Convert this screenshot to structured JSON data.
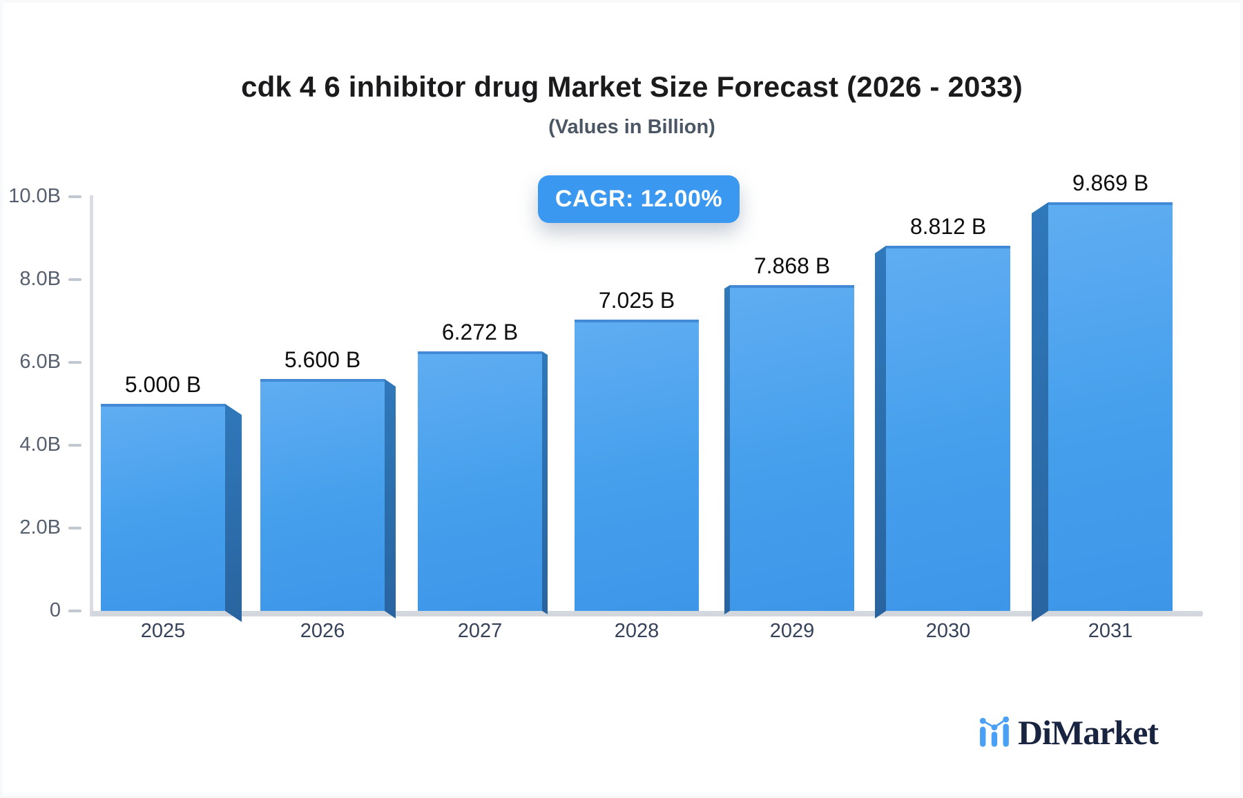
{
  "header": {
    "title": "cdk 4 6 inhibitor drug Market Size Forecast (2026 - 2033)",
    "subtitle": "(Values in Billion)"
  },
  "badge": {
    "label": "CAGR: 12.00%",
    "bg_color": "#3b98f0",
    "text_color": "#ffffff"
  },
  "chart_data": {
    "type": "bar",
    "title": "cdk 4 6 inhibitor drug Market Size Forecast (2026 - 2033)",
    "subtitle": "(Values in Billion)",
    "annotation": "CAGR: 12.00%",
    "categories": [
      "2025",
      "2026",
      "2027",
      "2028",
      "2029",
      "2030",
      "2031"
    ],
    "values": [
      5.0,
      5.6,
      6.272,
      7.025,
      7.868,
      8.812,
      9.869
    ],
    "data_labels": [
      "5.000 B",
      "5.600 B",
      "6.272 B",
      "7.025 B",
      "7.868 B",
      "8.812 B",
      "9.869 B"
    ],
    "xlabel": "",
    "ylabel": "",
    "ylim": [
      0,
      10
    ],
    "yticks": {
      "values": [
        0,
        2,
        4,
        6,
        8,
        10
      ],
      "labels": [
        "0",
        "2.0B",
        "4.0B",
        "6.0B",
        "8.0B",
        "10.0B"
      ]
    },
    "grid": false,
    "legend_position": "none",
    "colors": {
      "bar_face": "#459fec",
      "bar_face_light": "#5fadf2",
      "bar_face_deep": "#3e96e9",
      "bar_side_3d": "#2d72b4",
      "bar_top_edge": "#4289d6",
      "axis_line": "#d9dce2",
      "tick_dash": "#c2c8d2",
      "y_label": "#555f6d",
      "x_label": "#36425a",
      "value_label": "#0d0d0f"
    }
  },
  "watermark": {
    "brand": "DiMarket",
    "icon": "dimarket-logo-icon",
    "icon_color": "#4aa0f5",
    "text_color": "#192440"
  }
}
